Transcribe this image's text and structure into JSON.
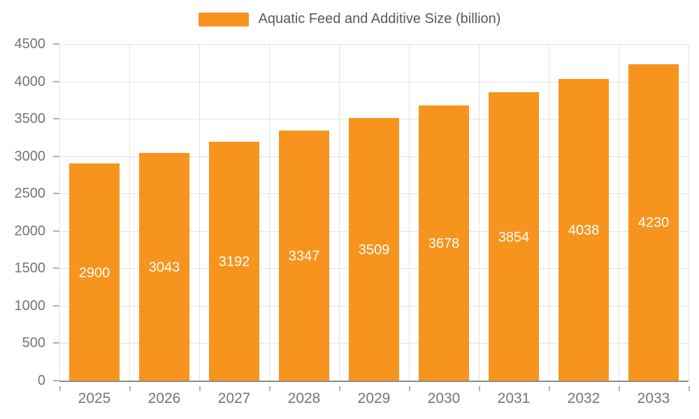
{
  "legend": {
    "label": "Aquatic Feed and Additive Size (billion)"
  },
  "colors": {
    "bar": "#F7941E",
    "bar_value_label": "#FFFFFF",
    "gridline": "#E3E3E3",
    "axis_line": "#8C8C8C",
    "tick_label": "#757575",
    "title_text": "#595959"
  },
  "chart_data": {
    "type": "bar",
    "title": "Aquatic Feed and Additive Size (billion)",
    "categories": [
      "2025",
      "2026",
      "2027",
      "2028",
      "2029",
      "2030",
      "2031",
      "2032",
      "2033"
    ],
    "values": [
      2900,
      3043,
      3192,
      3347,
      3509,
      3678,
      3854,
      4038,
      4230
    ],
    "xlabel": "",
    "ylabel": "",
    "ylim": [
      0,
      4500
    ],
    "ytick_step": 500,
    "yticks": [
      0,
      500,
      1000,
      1500,
      2000,
      2500,
      3000,
      3500,
      4000,
      4500
    ],
    "grid": true,
    "legend_position": "top",
    "value_labels": "inside-center"
  }
}
